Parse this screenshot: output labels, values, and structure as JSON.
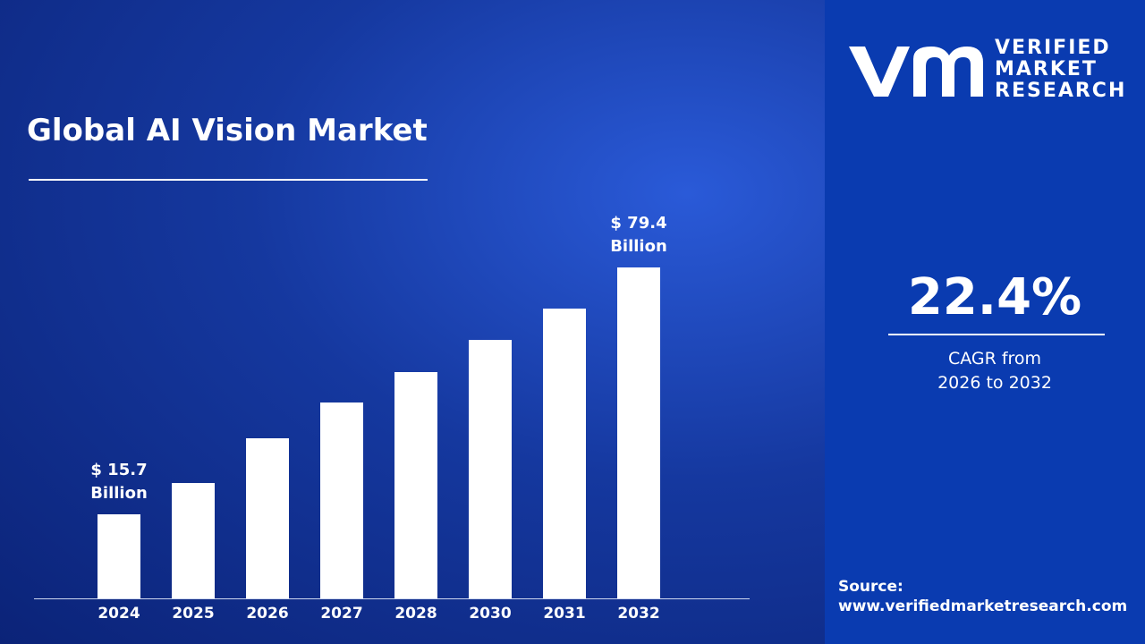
{
  "chart_data": {
    "type": "bar",
    "title": "Global AI Vision Market",
    "categories": [
      "2024",
      "2025",
      "2026",
      "2027",
      "2028",
      "2030",
      "2031",
      "2032"
    ],
    "values": [
      15.7,
      23.8,
      35.3,
      44.6,
      52.4,
      60.9,
      69.0,
      79.4
    ],
    "value_labels": [
      "$ 15.7\nBillion",
      null,
      null,
      null,
      null,
      null,
      null,
      "$ 79.4\nBillion"
    ],
    "color": "#ffffff"
  },
  "panel": {
    "brand": [
      "VERIFIED",
      "MARKET",
      "RESEARCH"
    ],
    "cagr": "22.4%",
    "cagr_caption": "CAGR from\n2026 to 2032",
    "source_label": "Source:",
    "source_url": "www.verifiedmarketresearch.com"
  }
}
